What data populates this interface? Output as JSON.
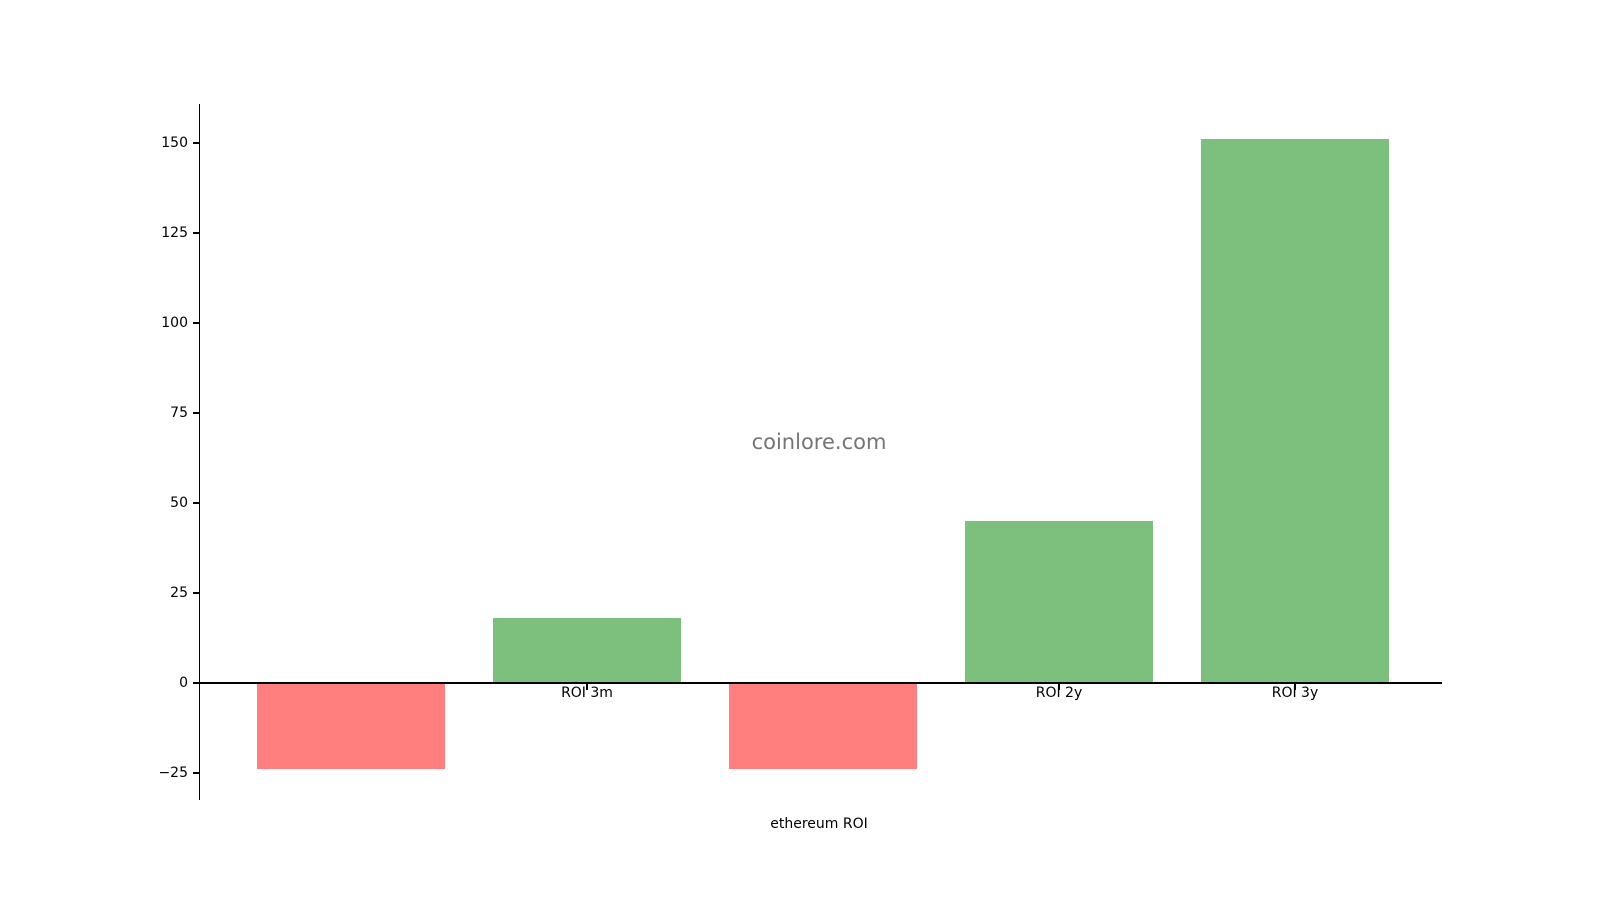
{
  "watermark": "coinlore.com",
  "chart_data": {
    "type": "bar",
    "title": "",
    "xlabel": "ethereum ROI",
    "ylabel": "",
    "categories": [
      "",
      "ROI 3m",
      "",
      "ROI 2y",
      "ROI 3y"
    ],
    "values": [
      -24,
      18,
      -24,
      45,
      151
    ],
    "bar_colors": [
      "#ff7f7f",
      "#7dbf7d",
      "#ff7f7f",
      "#7dbf7d",
      "#7dbf7d"
    ],
    "positive_color": "#7dbf7d",
    "negative_color": "#ff7f7f",
    "y_ticks": [
      -25,
      0,
      25,
      50,
      75,
      100,
      125,
      150
    ],
    "ylim": [
      -32.5,
      160.8
    ],
    "grid": false,
    "legend": null,
    "axis_color": "#000000",
    "watermark_color": "#757575"
  }
}
